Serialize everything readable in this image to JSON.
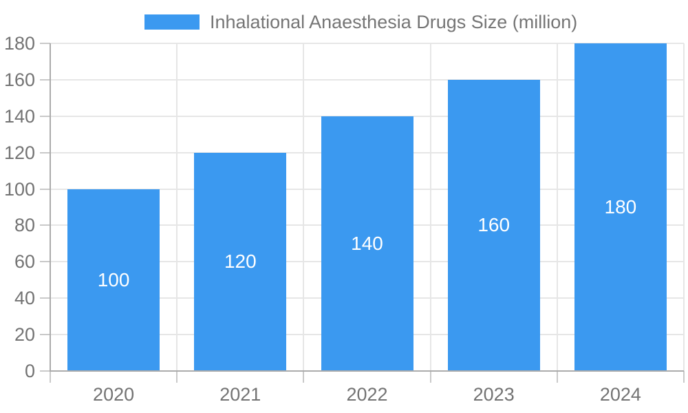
{
  "chart_data": {
    "type": "bar",
    "title": "Inhalational Anaesthesia Drugs Size (million)",
    "legend_entries": [
      "Inhalational Anaesthesia Drugs Size (million)"
    ],
    "legend_position": "top-center",
    "categories": [
      "2020",
      "2021",
      "2022",
      "2023",
      "2024"
    ],
    "series": [
      {
        "name": "Inhalational Anaesthesia Drugs Size (million)",
        "values": [
          100,
          120,
          140,
          160,
          180
        ]
      }
    ],
    "bar_value_labels": [
      "100",
      "120",
      "140",
      "160",
      "180"
    ],
    "xlabel": "",
    "ylabel": "",
    "ylim": [
      0,
      180
    ],
    "ytick_step": 20,
    "yticks": [
      0,
      20,
      40,
      60,
      80,
      100,
      120,
      140,
      160,
      180
    ],
    "grid": true,
    "colors": {
      "bar": "#3B99F0",
      "grid": "#e6e6e6",
      "axis": "#ababab",
      "tick": "#c9c9c9",
      "axis_label": "#737373",
      "legend_text": "#757575",
      "value_label": "#ffffff",
      "background": "#ffffff"
    }
  }
}
